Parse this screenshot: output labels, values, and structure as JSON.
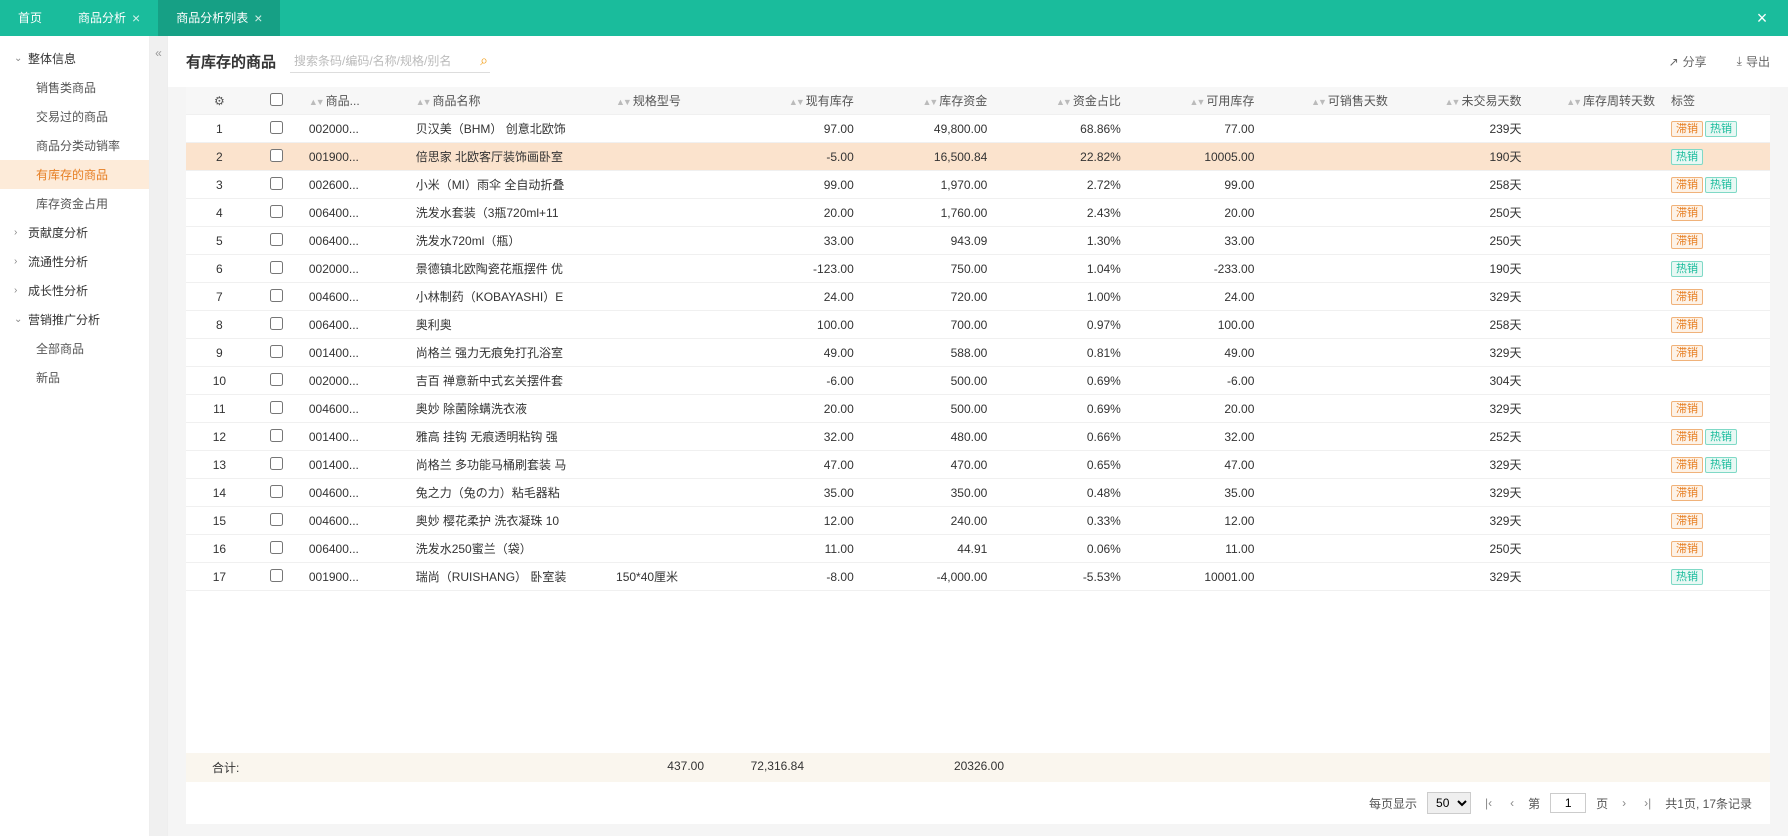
{
  "tabs": [
    {
      "label": "首页",
      "closable": false
    },
    {
      "label": "商品分析",
      "closable": true
    },
    {
      "label": "商品分析列表",
      "closable": true,
      "active": true
    }
  ],
  "sidebar": {
    "g1": {
      "title": "整体信息",
      "open": true,
      "items": [
        {
          "label": "销售类商品"
        },
        {
          "label": "交易过的商品"
        },
        {
          "label": "商品分类动销率"
        },
        {
          "label": "有库存的商品",
          "active": true
        },
        {
          "label": "库存资金占用"
        }
      ]
    },
    "g2": {
      "title": "贡献度分析",
      "open": false
    },
    "g3": {
      "title": "流通性分析",
      "open": false
    },
    "g4": {
      "title": "成长性分析",
      "open": false
    },
    "g5": {
      "title": "营销推广分析",
      "open": true,
      "items": [
        {
          "label": "全部商品"
        },
        {
          "label": "新品"
        }
      ]
    }
  },
  "page": {
    "title": "有库存的商品",
    "search_placeholder": "搜索条码/编码/名称/规格/别名",
    "share": "分享",
    "export": "导出"
  },
  "columns": {
    "code": "商品...",
    "name": "商品名称",
    "spec": "规格型号",
    "stock": "现有库存",
    "fund": "库存资金",
    "ratio": "资金占比",
    "avail": "可用库存",
    "saleDays": "可销售天数",
    "noTradeDays": "未交易天数",
    "turnDays": "库存周转天数",
    "tags": "标签"
  },
  "rows": [
    {
      "idx": 1,
      "code": "002000...",
      "name": "贝汉美（BHM） 创意北欧饰",
      "spec": "",
      "stock": "97.00",
      "fund": "49,800.00",
      "ratio": "68.86%",
      "avail": "77.00",
      "noTrade": "239天",
      "tags": [
        "滞销",
        "热销"
      ]
    },
    {
      "idx": 2,
      "code": "001900...",
      "name": "倍思家 北欧客厅装饰画卧室",
      "spec": "",
      "stock": "-5.00",
      "fund": "16,500.84",
      "ratio": "22.82%",
      "avail": "10005.00",
      "noTrade": "190天",
      "tags": [
        "热销"
      ],
      "hl": true
    },
    {
      "idx": 3,
      "code": "002600...",
      "name": "小米（MI）雨伞 全自动折叠",
      "spec": "",
      "stock": "99.00",
      "fund": "1,970.00",
      "ratio": "2.72%",
      "avail": "99.00",
      "noTrade": "258天",
      "tags": [
        "滞销",
        "热销"
      ]
    },
    {
      "idx": 4,
      "code": "006400...",
      "name": "洗发水套装（3瓶720ml+11",
      "spec": "",
      "stock": "20.00",
      "fund": "1,760.00",
      "ratio": "2.43%",
      "avail": "20.00",
      "noTrade": "250天",
      "tags": [
        "滞销"
      ]
    },
    {
      "idx": 5,
      "code": "006400...",
      "name": "洗发水720ml（瓶）",
      "spec": "",
      "stock": "33.00",
      "fund": "943.09",
      "ratio": "1.30%",
      "avail": "33.00",
      "noTrade": "250天",
      "tags": [
        "滞销"
      ]
    },
    {
      "idx": 6,
      "code": "002000...",
      "name": "景德镇北欧陶瓷花瓶摆件 优",
      "spec": "",
      "stock": "-123.00",
      "fund": "750.00",
      "ratio": "1.04%",
      "avail": "-233.00",
      "noTrade": "190天",
      "tags": [
        "热销"
      ]
    },
    {
      "idx": 7,
      "code": "004600...",
      "name": "小林制药（KOBAYASHI）E",
      "spec": "",
      "stock": "24.00",
      "fund": "720.00",
      "ratio": "1.00%",
      "avail": "24.00",
      "noTrade": "329天",
      "tags": [
        "滞销"
      ]
    },
    {
      "idx": 8,
      "code": "006400...",
      "name": "奥利奥",
      "spec": "",
      "stock": "100.00",
      "fund": "700.00",
      "ratio": "0.97%",
      "avail": "100.00",
      "noTrade": "258天",
      "tags": [
        "滞销"
      ]
    },
    {
      "idx": 9,
      "code": "001400...",
      "name": "尚格兰 强力无痕免打孔浴室",
      "spec": "",
      "stock": "49.00",
      "fund": "588.00",
      "ratio": "0.81%",
      "avail": "49.00",
      "noTrade": "329天",
      "tags": [
        "滞销"
      ]
    },
    {
      "idx": 10,
      "code": "002000...",
      "name": "吉百 禅意新中式玄关摆件套",
      "spec": "",
      "stock": "-6.00",
      "fund": "500.00",
      "ratio": "0.69%",
      "avail": "-6.00",
      "noTrade": "304天",
      "tags": []
    },
    {
      "idx": 11,
      "code": "004600...",
      "name": "奥妙 除菌除螨洗衣液",
      "spec": "",
      "stock": "20.00",
      "fund": "500.00",
      "ratio": "0.69%",
      "avail": "20.00",
      "noTrade": "329天",
      "tags": [
        "滞销"
      ]
    },
    {
      "idx": 12,
      "code": "001400...",
      "name": "雅高 挂钩 无痕透明粘钩 强",
      "spec": "",
      "stock": "32.00",
      "fund": "480.00",
      "ratio": "0.66%",
      "avail": "32.00",
      "noTrade": "252天",
      "tags": [
        "滞销",
        "热销"
      ]
    },
    {
      "idx": 13,
      "code": "001400...",
      "name": "尚格兰 多功能马桶刷套装 马",
      "spec": "",
      "stock": "47.00",
      "fund": "470.00",
      "ratio": "0.65%",
      "avail": "47.00",
      "noTrade": "329天",
      "tags": [
        "滞销",
        "热销"
      ]
    },
    {
      "idx": 14,
      "code": "004600...",
      "name": "兔之力（兔の力）粘毛器粘",
      "spec": "",
      "stock": "35.00",
      "fund": "350.00",
      "ratio": "0.48%",
      "avail": "35.00",
      "noTrade": "329天",
      "tags": [
        "滞销"
      ]
    },
    {
      "idx": 15,
      "code": "004600...",
      "name": "奥妙 樱花柔护 洗衣凝珠 10",
      "spec": "",
      "stock": "12.00",
      "fund": "240.00",
      "ratio": "0.33%",
      "avail": "12.00",
      "noTrade": "329天",
      "tags": [
        "滞销"
      ]
    },
    {
      "idx": 16,
      "code": "006400...",
      "name": "洗发水250蜜兰（袋）",
      "spec": "",
      "stock": "11.00",
      "fund": "44.91",
      "ratio": "0.06%",
      "avail": "11.00",
      "noTrade": "250天",
      "tags": [
        "滞销"
      ]
    },
    {
      "idx": 17,
      "code": "001900...",
      "name": "瑞尚（RUISHANG） 卧室装",
      "spec": "150*40厘米",
      "stock": "-8.00",
      "fund": "-4,000.00",
      "ratio": "-5.53%",
      "avail": "10001.00",
      "noTrade": "329天",
      "tags": [
        "热销"
      ]
    }
  ],
  "totals": {
    "label": "合计:",
    "stock": "437.00",
    "fund": "72,316.84",
    "avail": "20326.00"
  },
  "pager": {
    "perPageLabel": "每页显示",
    "perPage": "50",
    "pageLabelPre": "第",
    "page": "1",
    "pageLabelPost": "页",
    "summary": "共1页, 17条记录"
  },
  "colors": {
    "primary": "#1abc9c",
    "primaryDark": "#16a085",
    "activeNavBg": "#fdebd9",
    "activeNavText": "#e67e22",
    "rowHighlight": "#fbe3cd",
    "totalsBg": "#faf6ee"
  }
}
